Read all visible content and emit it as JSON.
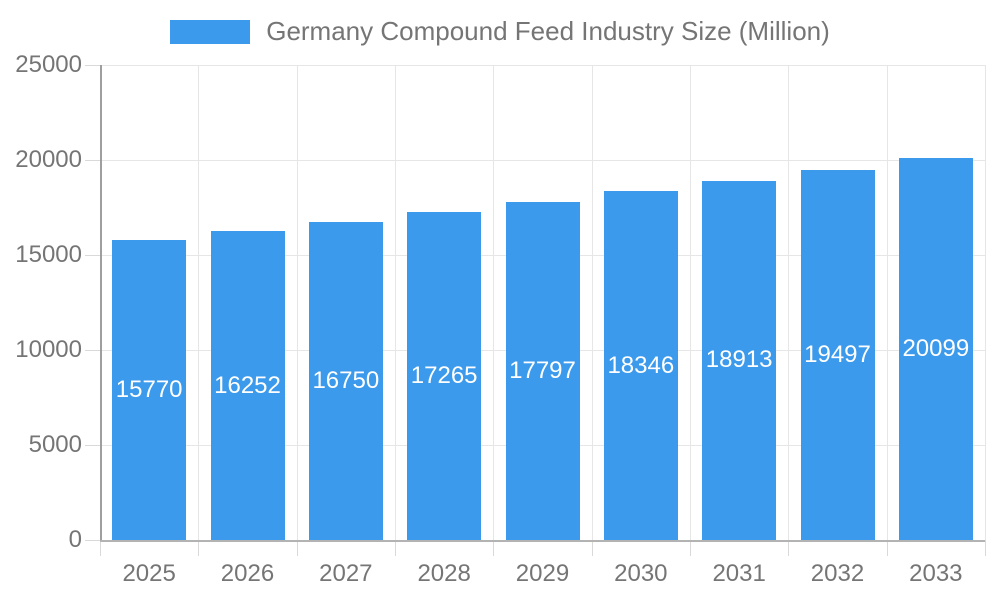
{
  "legend": {
    "label": "Germany Compound Feed Industry Size (Million)",
    "swatch_icon": "legend-color-swatch"
  },
  "chart_data": {
    "type": "bar",
    "title": "Germany Compound Feed Industry Size (Million)",
    "categories": [
      "2025",
      "2026",
      "2027",
      "2028",
      "2029",
      "2030",
      "2031",
      "2032",
      "2033"
    ],
    "values": [
      15770,
      16252,
      16750,
      17265,
      17797,
      18346,
      18913,
      19497,
      20099
    ],
    "xlabel": "",
    "ylabel": "",
    "ylim": [
      0,
      25000
    ],
    "yticks": [
      0,
      5000,
      10000,
      15000,
      20000,
      25000
    ],
    "grid": true,
    "legend_position": "top",
    "bar_color": "#3C9AEC",
    "bar_label_color": "#ffffff",
    "axis_text_color": "#757575",
    "gridline_color": "#e6e6e6",
    "axis_line_color": "#b3b3b3"
  }
}
